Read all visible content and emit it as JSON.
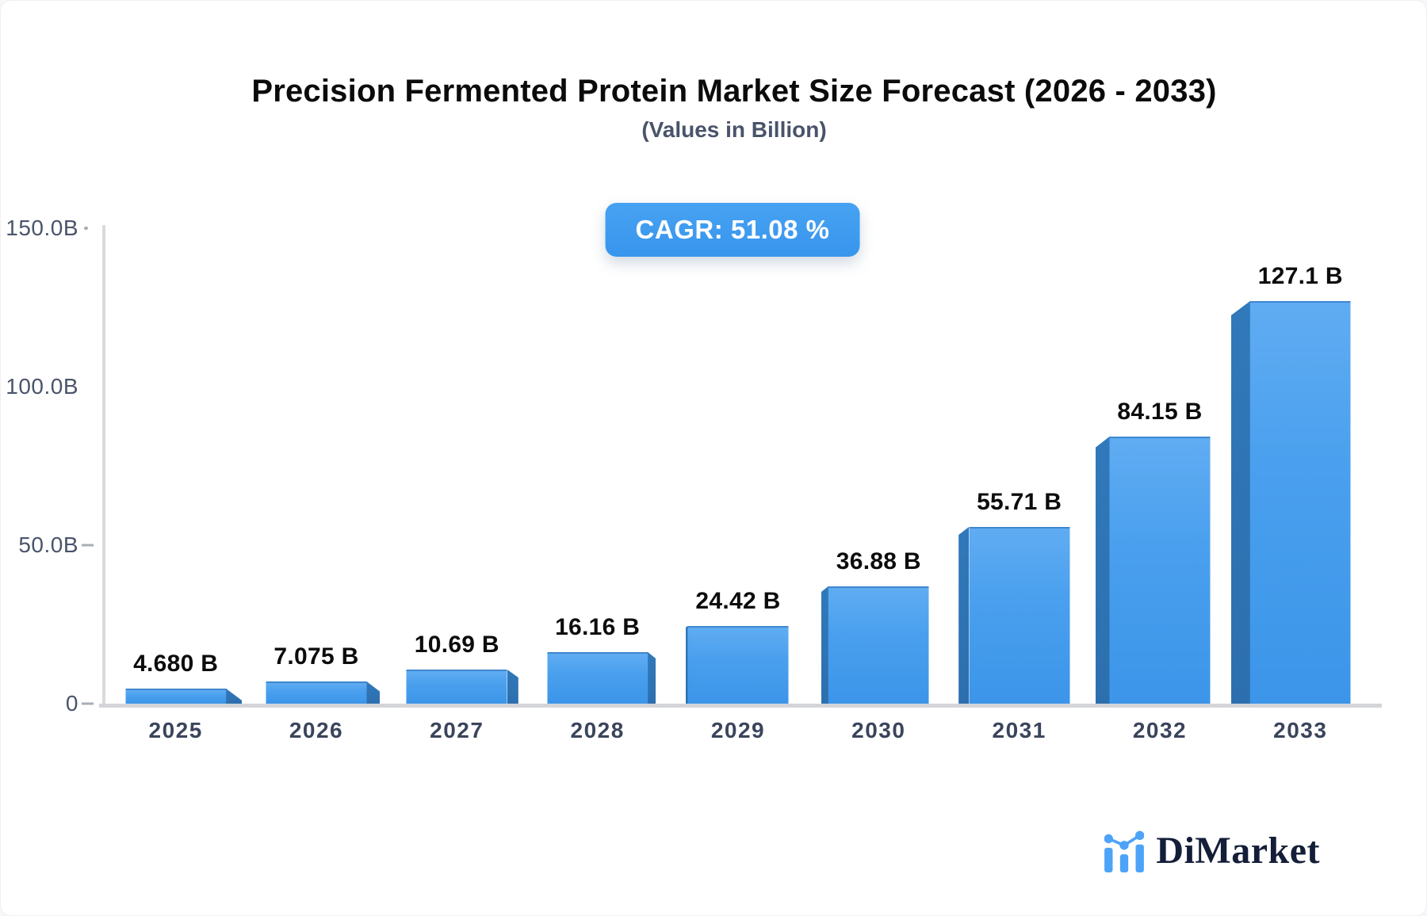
{
  "header": {
    "title": "Precision Fermented Protein Market Size Forecast (2026 - 2033)",
    "subtitle": "(Values in Billion)",
    "cagr_badge": "CAGR: 51.08 %"
  },
  "chart_data": {
    "type": "bar",
    "title": "Precision Fermented Protein Market Size Forecast (2026 - 2033)",
    "subtitle": "(Values in Billion)",
    "unit": "Billion",
    "cagr_percent": 51.08,
    "categories": [
      "2025",
      "2026",
      "2027",
      "2028",
      "2029",
      "2030",
      "2031",
      "2032",
      "2033"
    ],
    "values": [
      4.68,
      7.075,
      10.69,
      16.16,
      24.42,
      36.88,
      55.71,
      84.15,
      127.1
    ],
    "value_labels": [
      "4.680 B",
      "7.075 B",
      "10.69 B",
      "16.16 B",
      "24.42 B",
      "36.88 B",
      "55.71 B",
      "84.15 B",
      "127.1 B"
    ],
    "ylim": [
      0,
      150
    ],
    "y_ticks": [
      {
        "label": "150.0B",
        "value": 150,
        "mark": "dot"
      },
      {
        "label": "100.0B",
        "value": 100,
        "mark": "none"
      },
      {
        "label": "50.0B",
        "value": 50,
        "mark": "dash"
      },
      {
        "label": "0",
        "value": 0,
        "mark": "dash"
      }
    ],
    "grid": false,
    "legend": false,
    "bar_style": "3d-perspective"
  },
  "colors": {
    "bar_face_top": "#60acf2",
    "bar_face_bottom": "#3c95e9",
    "bar_side": "#2e74b5",
    "bar_top_edge": "#3e87cf",
    "axis": "#d6d8db",
    "y_tick_label": "#4a546b",
    "x_label": "#3a445c",
    "value_label": "#0c0c0c",
    "badge_bg": "#3f9bee",
    "badge_text": "#ffffff",
    "logo_blue": "#4da3f7",
    "logo_text_color": "#141e38"
  },
  "logo": {
    "text": "DiMarket",
    "icon": "mini-bar-chart-icon"
  }
}
